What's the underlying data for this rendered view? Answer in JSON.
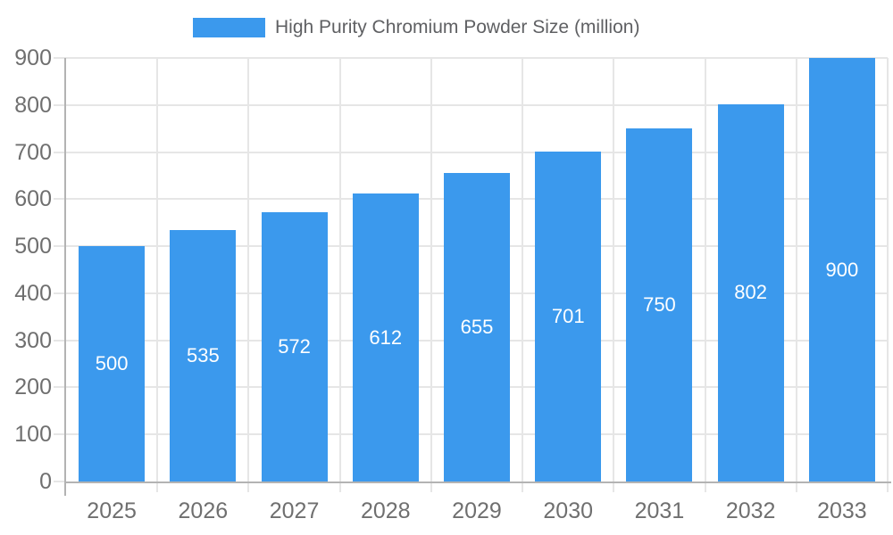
{
  "chart_data": {
    "type": "bar",
    "title": "High Purity Chromium Powder Size (million)",
    "legend": {
      "position": "top",
      "entries": [
        "High Purity Chromium Powder Size (million)"
      ]
    },
    "categories": [
      "2025",
      "2026",
      "2027",
      "2028",
      "2029",
      "2030",
      "2031",
      "2032",
      "2033"
    ],
    "values": [
      500,
      535,
      572,
      612,
      655,
      701,
      750,
      802,
      900
    ],
    "value_labels": [
      "500",
      "535",
      "572",
      "612",
      "655",
      "701",
      "750",
      "802",
      "900"
    ],
    "xlabel": "",
    "ylabel": "",
    "ylim": [
      0,
      900
    ],
    "yticks": [
      0,
      100,
      200,
      300,
      400,
      500,
      600,
      700,
      800,
      900
    ],
    "grid": true,
    "colors": {
      "bar": "#3B99ED",
      "value_label": "#ffffff",
      "axis_label": "#6f6f6f",
      "legend_text": "#5f6063",
      "gridline": "#e6e6e6",
      "tick": "#e6e6e6",
      "axis_line": "#b3b3b3",
      "background": "#ffffff"
    }
  }
}
